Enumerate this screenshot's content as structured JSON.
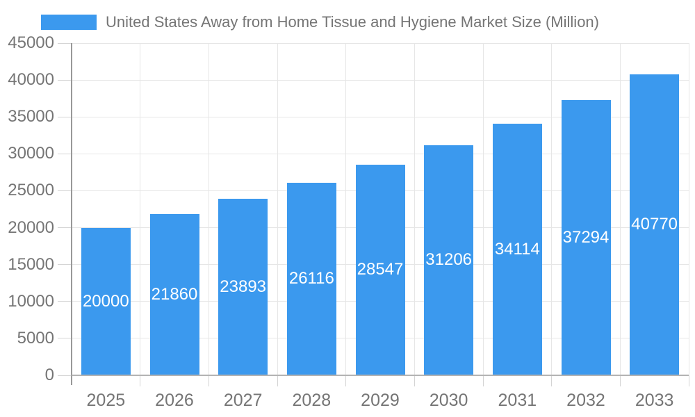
{
  "legend": {
    "label": "United States Away from Home Tissue and Hygiene Market Size (Million)"
  },
  "chart_data": {
    "type": "bar",
    "title": "United States Away from Home Tissue and Hygiene Market Size (Million)",
    "categories": [
      "2025",
      "2026",
      "2027",
      "2028",
      "2029",
      "2030",
      "2031",
      "2032",
      "2033"
    ],
    "values": [
      20000,
      21860,
      23893,
      26116,
      28547,
      31206,
      34114,
      37294,
      40770
    ],
    "series": [
      {
        "name": "United States Away from Home Tissue and Hygiene Market Size (Million)",
        "values": [
          20000,
          21860,
          23893,
          26116,
          28547,
          31206,
          34114,
          37294,
          40770
        ]
      }
    ],
    "xlabel": "",
    "ylabel": "",
    "ylim": [
      0,
      45000
    ],
    "y_ticks": [
      0,
      5000,
      10000,
      15000,
      20000,
      25000,
      30000,
      35000,
      40000,
      45000
    ],
    "grid": "both",
    "legend_position": "top-left",
    "value_label_style": "white-centered-inside-bar",
    "colors": {
      "bar": "#3b99ee",
      "axis_text": "#757575",
      "gridline": "#e6e6e6",
      "tick": "#d4d4d4",
      "y_axis_line": "#999999",
      "x_axis_line": "#b3b3b3",
      "value_label_text": "#ffffff",
      "background": "#ffffff"
    }
  }
}
